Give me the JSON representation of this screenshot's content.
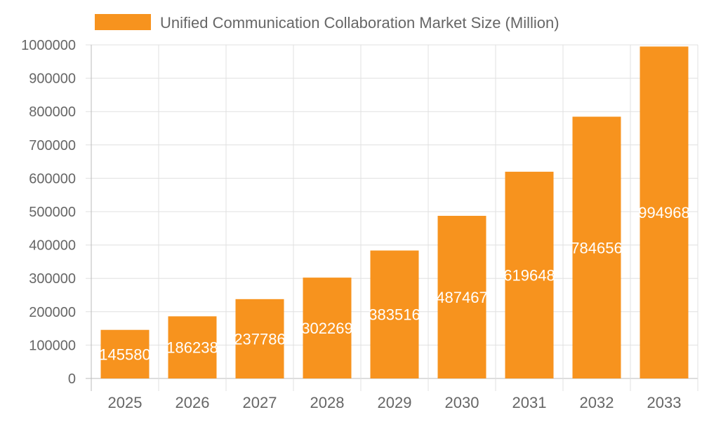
{
  "chart_data": {
    "type": "bar",
    "categories": [
      "2025",
      "2026",
      "2027",
      "2028",
      "2029",
      "2030",
      "2031",
      "2032",
      "2033"
    ],
    "series": [
      {
        "name": "Unified Communication Collaboration Market Size (Million)",
        "values": [
          145580,
          186238,
          237786,
          302269,
          383516,
          487467,
          619648,
          784656,
          994968
        ],
        "color": "#f7931e"
      }
    ],
    "ylim": [
      0,
      1000000
    ],
    "yticks": [
      0,
      100000,
      200000,
      300000,
      400000,
      500000,
      600000,
      700000,
      800000,
      900000,
      1000000
    ],
    "grid": true,
    "legend": "top",
    "data_labels": true,
    "label_color": "#ffffff"
  }
}
